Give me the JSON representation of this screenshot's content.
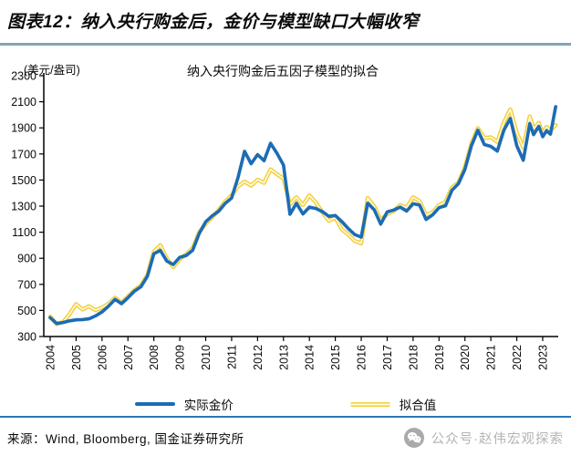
{
  "header": {
    "title": "图表12：纳入央行购金后，金价与模型缺口大幅收窄"
  },
  "chart": {
    "subtitle": "纳入央行购金后五因子模型的拟合",
    "unit_label": "(美元/盎司)",
    "colors": {
      "actual": "#1c6cb5",
      "fitted": "#f2cf3d",
      "fitted_core": "#fffbe0",
      "axis": "#000000"
    }
  },
  "chart_data": {
    "type": "line",
    "title": "纳入央行购金后五因子模型的拟合",
    "ylabel": "(美元/盎司)",
    "ylim": [
      300,
      2300
    ],
    "y_ticks": [
      300,
      500,
      700,
      900,
      1100,
      1300,
      1500,
      1700,
      1900,
      2100,
      2300
    ],
    "x_ticks": [
      2004,
      2005,
      2006,
      2007,
      2008,
      2009,
      2010,
      2011,
      2012,
      2013,
      2014,
      2015,
      2016,
      2017,
      2018,
      2019,
      2020,
      2021,
      2022,
      2023
    ],
    "grid": false,
    "legend_position": "bottom",
    "x": [
      2004.0,
      2004.25,
      2004.5,
      2004.75,
      2005.0,
      2005.25,
      2005.5,
      2005.75,
      2006.0,
      2006.25,
      2006.5,
      2006.75,
      2007.0,
      2007.25,
      2007.5,
      2007.75,
      2008.0,
      2008.25,
      2008.5,
      2008.75,
      2009.0,
      2009.25,
      2009.5,
      2009.75,
      2010.0,
      2010.25,
      2010.5,
      2010.75,
      2011.0,
      2011.25,
      2011.5,
      2011.75,
      2012.0,
      2012.25,
      2012.5,
      2012.75,
      2013.0,
      2013.25,
      2013.5,
      2013.75,
      2014.0,
      2014.25,
      2014.5,
      2014.75,
      2015.0,
      2015.25,
      2015.5,
      2015.75,
      2016.0,
      2016.25,
      2016.5,
      2016.75,
      2017.0,
      2017.25,
      2017.5,
      2017.75,
      2018.0,
      2018.25,
      2018.5,
      2018.75,
      2019.0,
      2019.25,
      2019.5,
      2019.75,
      2020.0,
      2020.25,
      2020.5,
      2020.75,
      2021.0,
      2021.25,
      2021.5,
      2021.75,
      2022.0,
      2022.25,
      2022.5,
      2022.65,
      2022.85,
      2023.0,
      2023.15,
      2023.3,
      2023.5
    ],
    "series": [
      {
        "name": "实际金价",
        "color": "#1c6cb5",
        "values": [
          445,
          400,
          408,
          420,
          428,
          430,
          436,
          458,
          488,
          532,
          585,
          552,
          598,
          648,
          682,
          762,
          935,
          960,
          878,
          852,
          908,
          922,
          962,
          1090,
          1180,
          1225,
          1260,
          1320,
          1362,
          1520,
          1720,
          1625,
          1695,
          1648,
          1782,
          1705,
          1615,
          1238,
          1322,
          1240,
          1292,
          1282,
          1258,
          1222,
          1228,
          1182,
          1128,
          1082,
          1062,
          1322,
          1272,
          1162,
          1255,
          1270,
          1292,
          1262,
          1318,
          1308,
          1198,
          1232,
          1288,
          1302,
          1422,
          1472,
          1582,
          1762,
          1882,
          1772,
          1758,
          1722,
          1882,
          1972,
          1762,
          1652,
          1932,
          1848,
          1912,
          1832,
          1878,
          1852,
          2062
        ]
      },
      {
        "name": "拟合值",
        "color": "#f2cf3d",
        "values": [
          452,
          396,
          412,
          472,
          548,
          508,
          532,
          502,
          522,
          552,
          598,
          558,
          608,
          655,
          692,
          772,
          952,
          1000,
          898,
          832,
          892,
          932,
          978,
          1100,
          1165,
          1215,
          1270,
          1335,
          1382,
          1452,
          1488,
          1458,
          1502,
          1478,
          1582,
          1545,
          1512,
          1312,
          1368,
          1308,
          1382,
          1328,
          1252,
          1188,
          1212,
          1122,
          1082,
          1032,
          1015,
          1362,
          1298,
          1192,
          1238,
          1262,
          1308,
          1288,
          1368,
          1338,
          1232,
          1252,
          1308,
          1332,
          1442,
          1482,
          1598,
          1778,
          1898,
          1822,
          1828,
          1792,
          1942,
          2042,
          1862,
          1748,
          1988,
          1892,
          1938,
          1858,
          1908,
          1882,
          1922
        ]
      }
    ]
  },
  "legend": {
    "items": [
      {
        "label": "实际金价"
      },
      {
        "label": "拟合值"
      }
    ]
  },
  "footer": {
    "source": "来源：Wind, Bloomberg, 国金证券研究所",
    "wechat_label": "公众号·赵伟宏观探索"
  }
}
